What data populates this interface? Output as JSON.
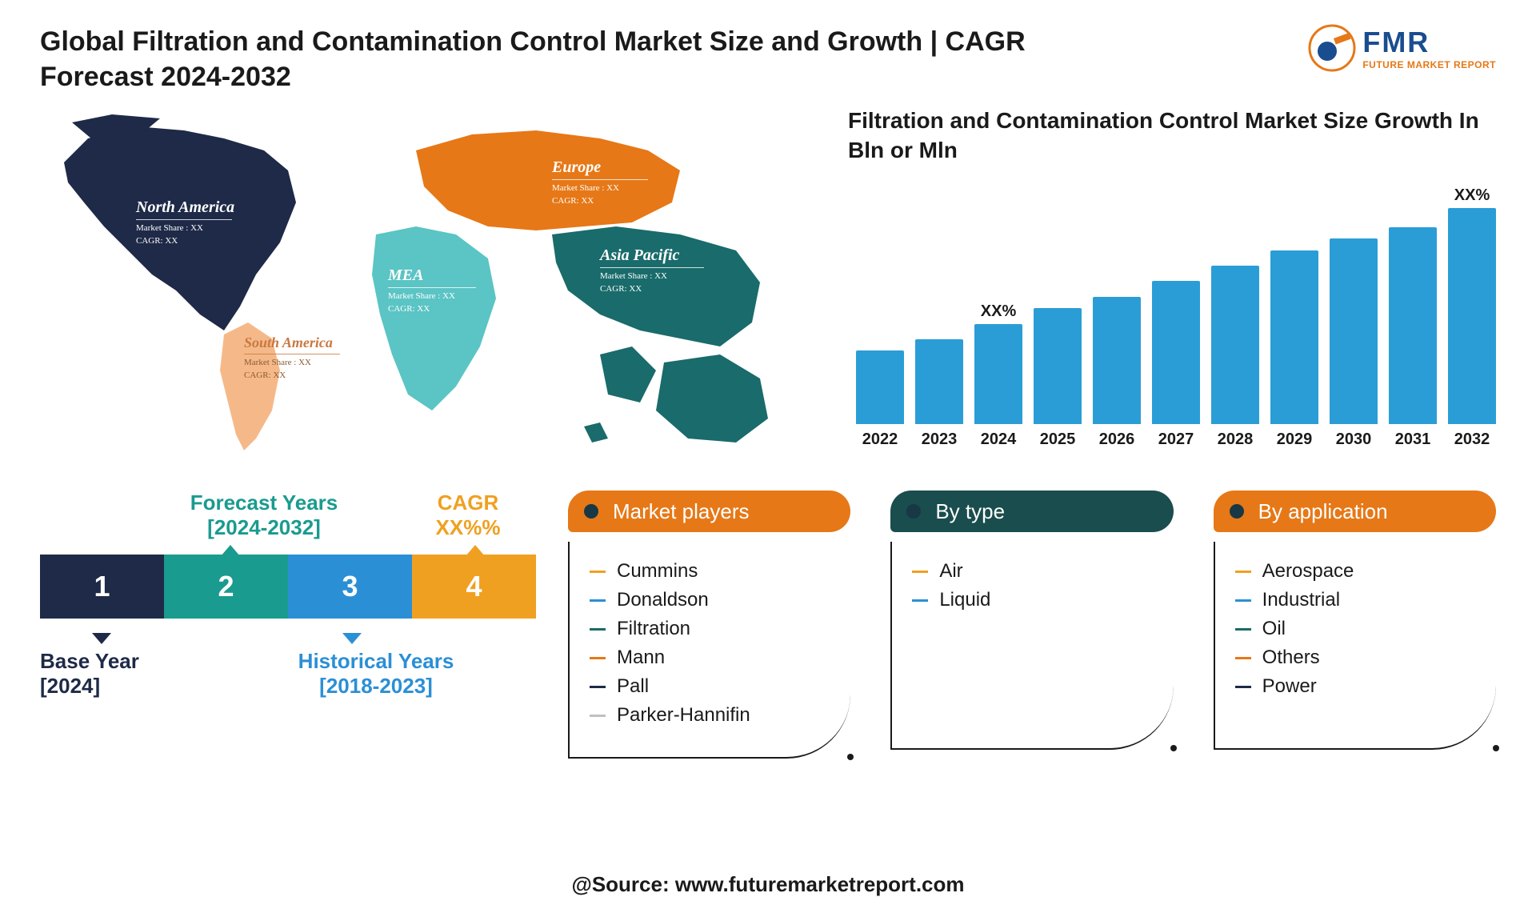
{
  "title": "Global Filtration and Contamination Control Market Size and Growth | CAGR Forecast 2024-2032",
  "logo": {
    "main": "FMR",
    "sub": "FUTURE MARKET REPORT"
  },
  "colors": {
    "na": "#1e2a47",
    "sa": "#f5b989",
    "mea": "#5bc4c4",
    "eu": "#e67817",
    "ap": "#1a6b6b",
    "bar": "#2b9dd6",
    "bar_dark": "#1a7aa8",
    "pill_orange": "#e67817",
    "pill_teal": "#1a4d4d",
    "seg1": "#1e2a47",
    "seg2": "#1a9b8f",
    "seg3": "#2b8fd6",
    "seg4": "#f0a020",
    "ticks": [
      "#f0a020",
      "#2b8fd6",
      "#1a6b6b",
      "#e67817",
      "#1e2a47",
      "#c0c0c0"
    ]
  },
  "map": {
    "regions": [
      {
        "key": "na",
        "name": "North America",
        "share": "Market Share : XX",
        "cagr": "CAGR: XX"
      },
      {
        "key": "sa",
        "name": "South America",
        "share": "Market Share : XX",
        "cagr": "CAGR: XX"
      },
      {
        "key": "mea",
        "name": "MEA",
        "share": "Market Share : XX",
        "cagr": "CAGR: XX"
      },
      {
        "key": "eu",
        "name": "Europe",
        "share": "Market Share : XX",
        "cagr": "CAGR: XX"
      },
      {
        "key": "ap",
        "name": "Asia Pacific",
        "share": "Market Share : XX",
        "cagr": "CAGR: XX"
      }
    ]
  },
  "chart": {
    "title": "Filtration and Contamination Control Market Size Growth In\nBln or Mln",
    "type": "bar",
    "years": [
      "2022",
      "2023",
      "2024",
      "2025",
      "2026",
      "2027",
      "2028",
      "2029",
      "2030",
      "2031",
      "2032"
    ],
    "values": [
      95,
      110,
      130,
      150,
      165,
      185,
      205,
      225,
      240,
      255,
      280
    ],
    "ylim": [
      0,
      300
    ],
    "bar_color": "#2b9dd6",
    "annot_2024": "XX%",
    "annot_2032": "XX%",
    "label_fontsize": 20
  },
  "timeline": {
    "forecast_label": "Forecast Years\n[2024-2032]",
    "cagr_label": "CAGR\nXX%%",
    "base_label": "Base Year\n[2024]",
    "hist_label": "Historical Years\n[2018-2023]",
    "segments": [
      "1",
      "2",
      "3",
      "4"
    ]
  },
  "categories": [
    {
      "pill": "Market players",
      "pill_style": "orange",
      "items": [
        "Cummins",
        "Donaldson",
        "Filtration",
        "Mann",
        "Pall",
        "Parker-Hannifin"
      ]
    },
    {
      "pill": "By type",
      "pill_style": "teal",
      "items": [
        "Air",
        "Liquid"
      ]
    },
    {
      "pill": "By application",
      "pill_style": "orange",
      "items": [
        "Aerospace",
        "Industrial",
        "Oil",
        "Others",
        "Power"
      ]
    }
  ],
  "source": "@Source: www.futuremarketreport.com"
}
